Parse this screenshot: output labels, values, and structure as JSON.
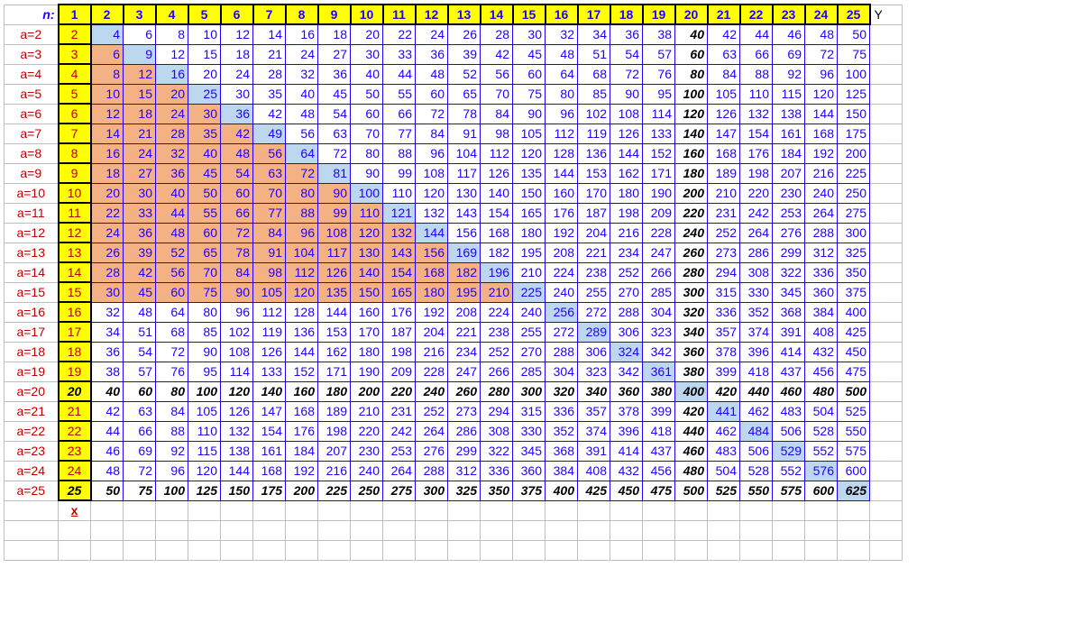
{
  "header": {
    "n_label": "n:",
    "y_label": "Y"
  },
  "footer": {
    "x_label": "x"
  },
  "ncols": 25,
  "a_start": 2,
  "a_end": 25,
  "bold_col": 20,
  "bold_rows": [
    20,
    25
  ],
  "colors": {
    "yellow": "#ffff00",
    "blue_text": "#1f00ff",
    "red_text": "#c00000",
    "tri": "#f4b183",
    "diag": "#bdd7ee",
    "grid": "#bfbfbf",
    "black": "#000000",
    "white": "#ffffff"
  },
  "font": {
    "family": "Arial",
    "size_pt": 11
  }
}
